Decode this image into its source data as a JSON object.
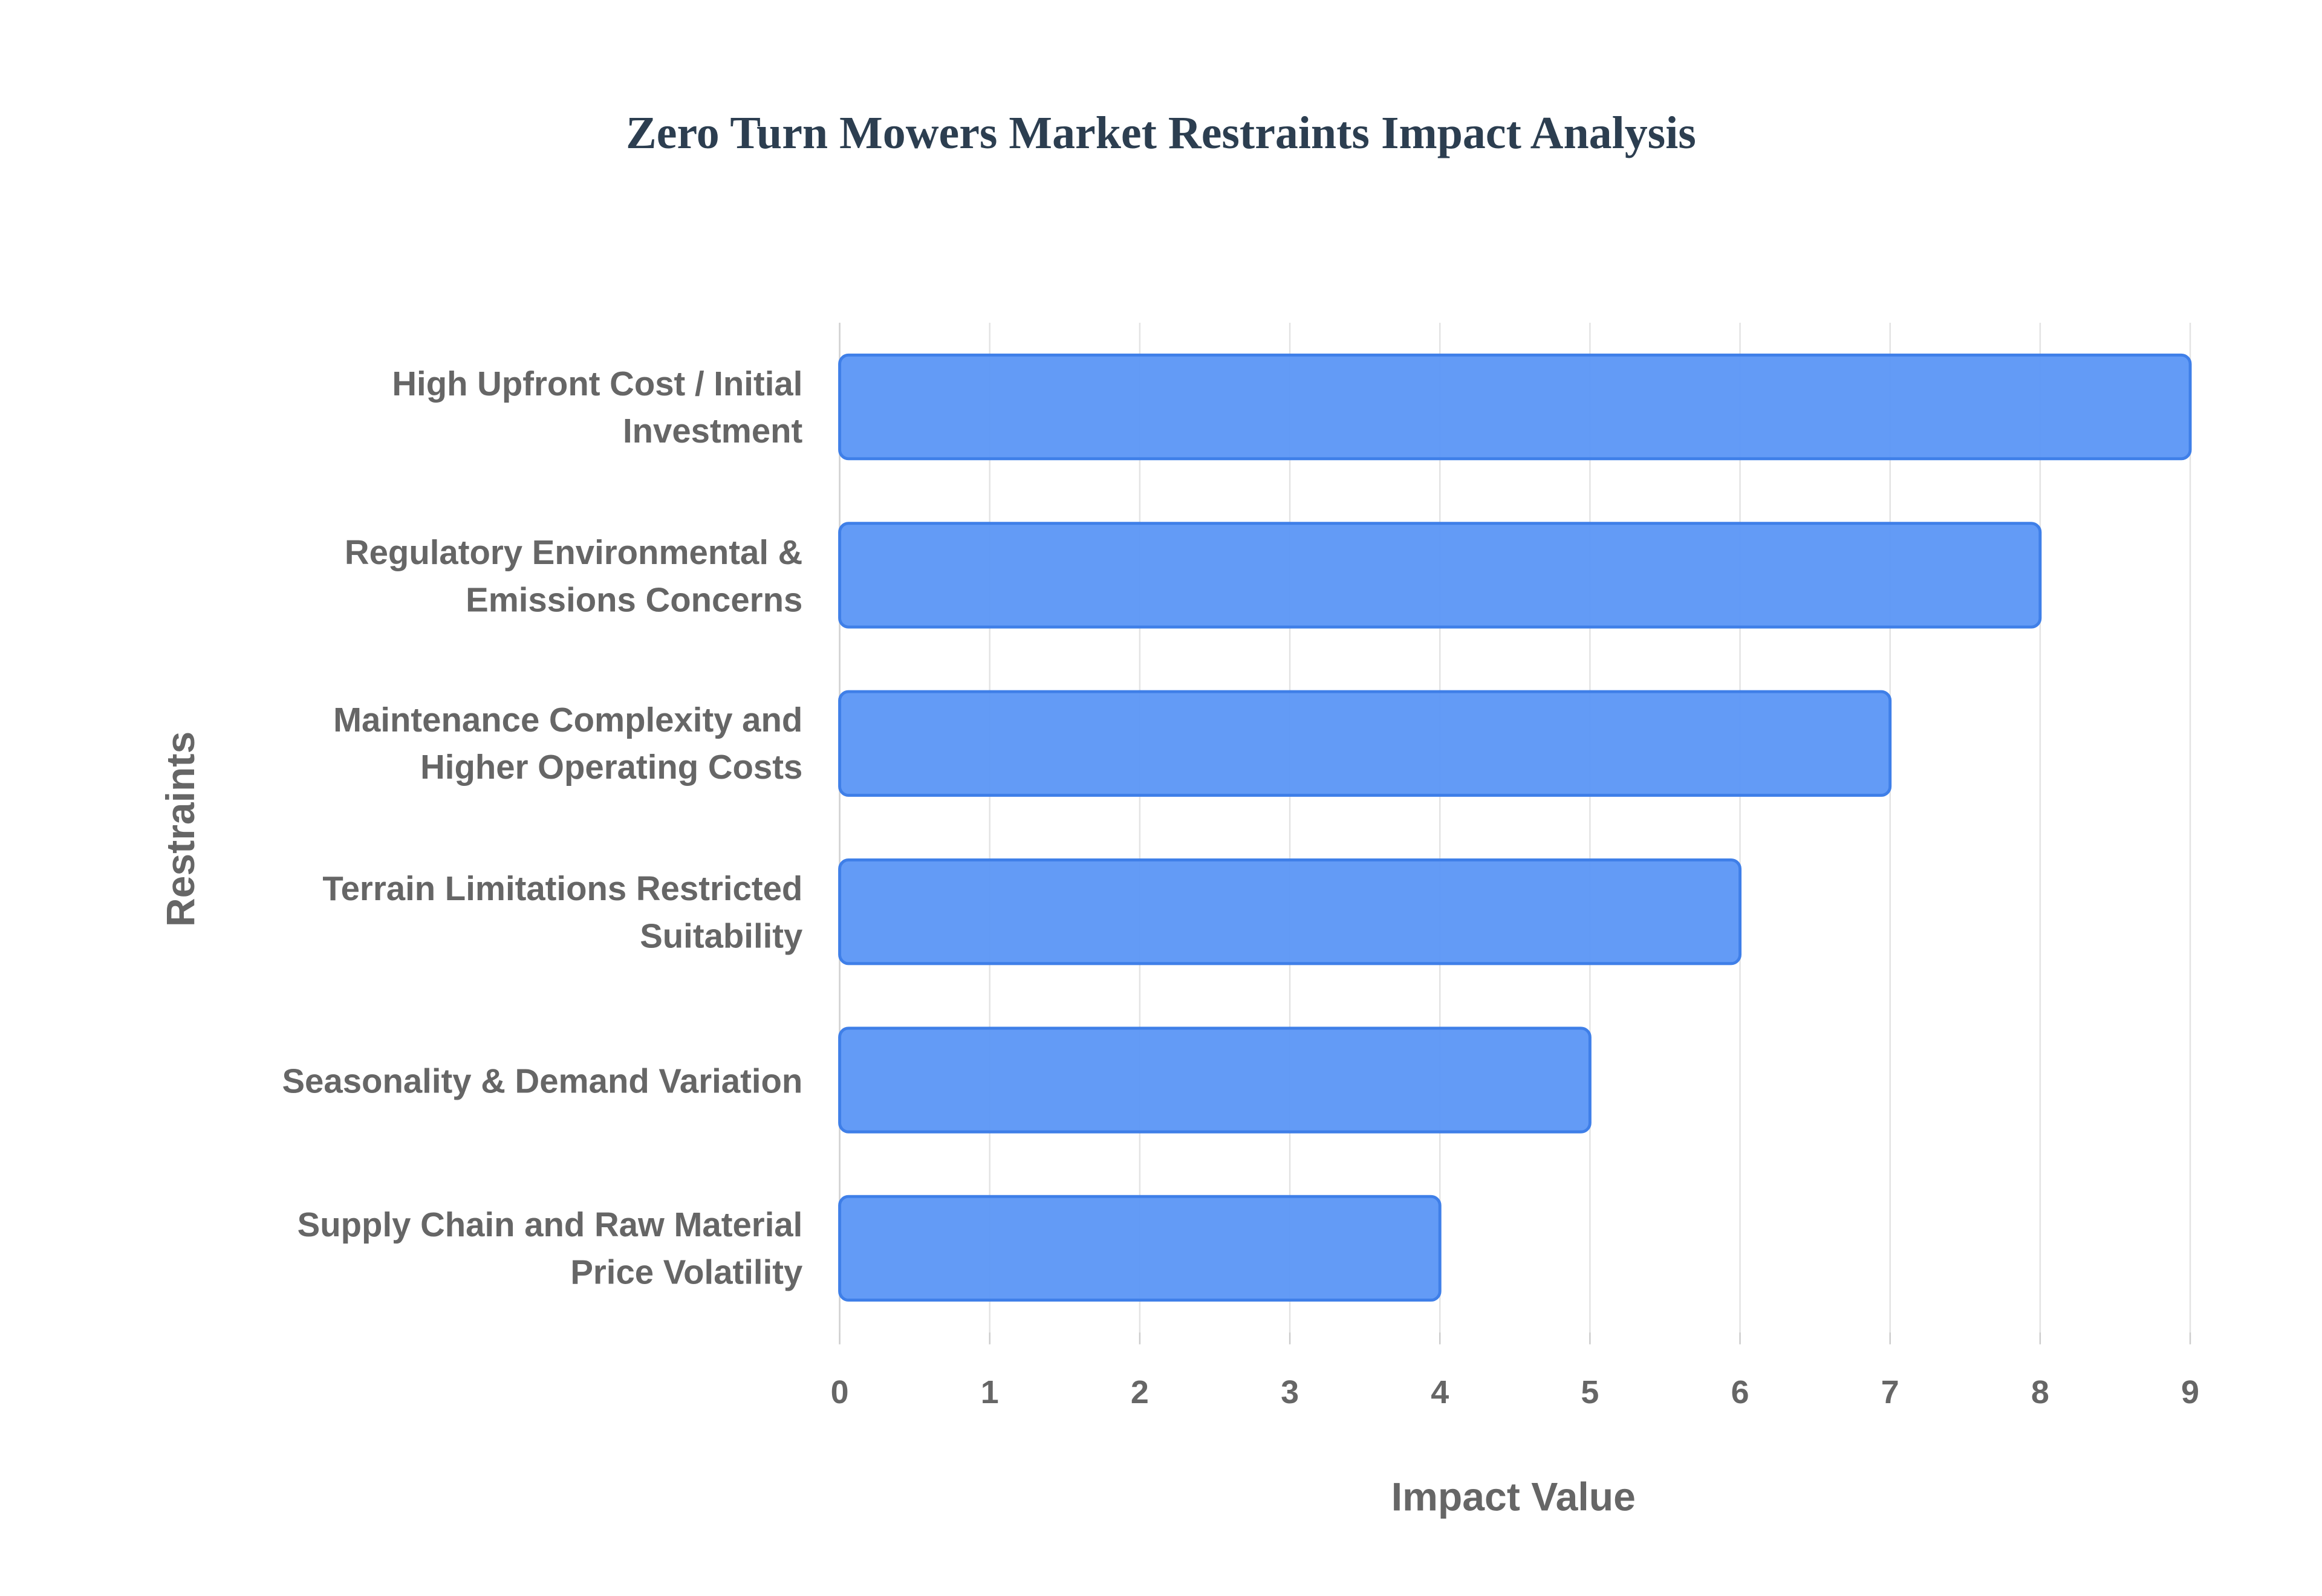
{
  "chart_data": {
    "type": "bar",
    "orientation": "horizontal",
    "title": "Zero Turn Mowers Market Restraints Impact Analysis",
    "x_label": "Impact Value",
    "y_label": "Restraints",
    "categories": [
      "High Upfront Cost / Initial Investment",
      "Regulatory Environmental & Emissions Concerns",
      "Maintenance Complexity and Higher Operating Costs",
      "Terrain Limitations Restricted Suitability",
      "Seasonality & Demand Variation",
      "Supply Chain and Raw Material Price Volatility"
    ],
    "values": [
      9,
      8,
      7,
      6,
      5,
      4
    ],
    "color": "#5b96f5",
    "xlim": [
      0,
      9
    ],
    "xticks": [
      0,
      1,
      2,
      3,
      4,
      5,
      6,
      7,
      8,
      9
    ],
    "grid": true
  }
}
